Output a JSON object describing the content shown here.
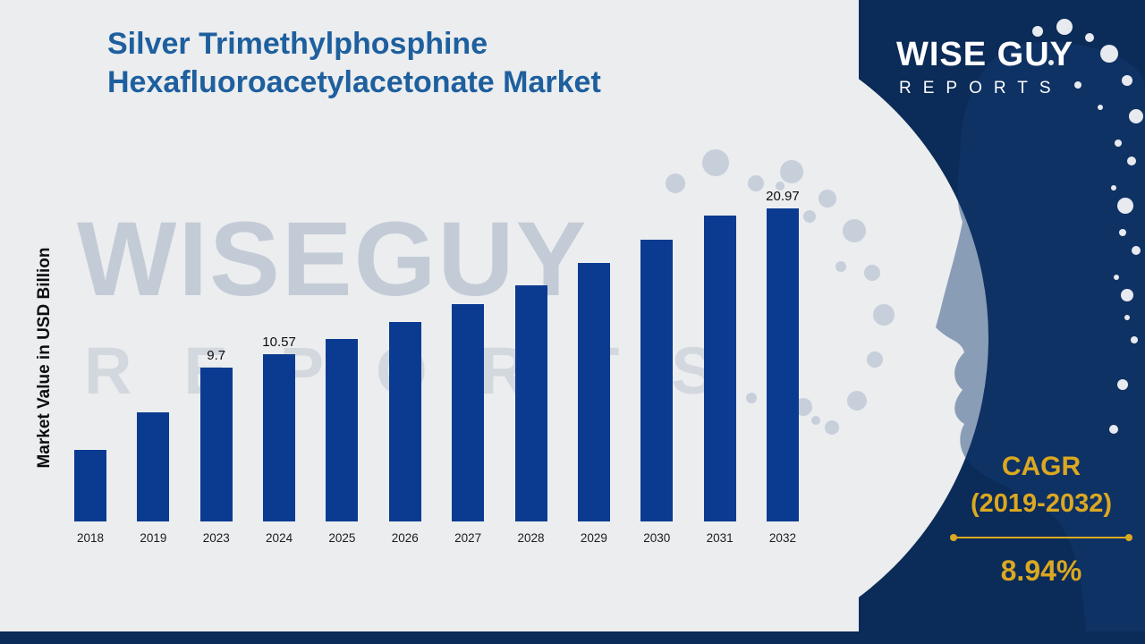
{
  "header": {
    "title": "Silver Trimethylphosphine Hexafluoroacetylacetonate Market"
  },
  "watermark": {
    "line1": "WISEGUY",
    "line2": "REPORTS"
  },
  "logo": {
    "line1": "WISE GUY",
    "line2": "REPORTS"
  },
  "cagr": {
    "label": "CAGR",
    "range": "(2019-2032)",
    "value": "8.94%"
  },
  "colors": {
    "bar": "#0b3b91",
    "panel_navy": "#0b2b58",
    "title_blue": "#1e5f9e",
    "accent_gold": "#dba821",
    "background": "#ebedef"
  },
  "chart_data": {
    "type": "bar",
    "title": "Silver Trimethylphosphine Hexafluoroacetylacetonate Market",
    "xlabel": "",
    "ylabel": "Market Value in USD Billion",
    "ylim": [
      0,
      21
    ],
    "grid": false,
    "legend": "none",
    "categories": [
      "2018",
      "2019",
      "2023",
      "2024",
      "2025",
      "2026",
      "2027",
      "2028",
      "2029",
      "2030",
      "2031",
      "2032"
    ],
    "points": [
      {
        "year": "2018",
        "value": 4.5,
        "label": ""
      },
      {
        "year": "2019",
        "value": 6.9,
        "label": ""
      },
      {
        "year": "2023",
        "value": 9.7,
        "label": "9.7"
      },
      {
        "year": "2024",
        "value": 10.57,
        "label": "10.57"
      },
      {
        "year": "2025",
        "value": 11.5,
        "label": ""
      },
      {
        "year": "2026",
        "value": 12.6,
        "label": ""
      },
      {
        "year": "2027",
        "value": 13.7,
        "label": ""
      },
      {
        "year": "2028",
        "value": 14.9,
        "label": ""
      },
      {
        "year": "2029",
        "value": 16.3,
        "label": ""
      },
      {
        "year": "2030",
        "value": 17.8,
        "label": ""
      },
      {
        "year": "2031",
        "value": 19.3,
        "label": ""
      },
      {
        "year": "2032",
        "value": 20.97,
        "label": "20.97"
      }
    ]
  }
}
